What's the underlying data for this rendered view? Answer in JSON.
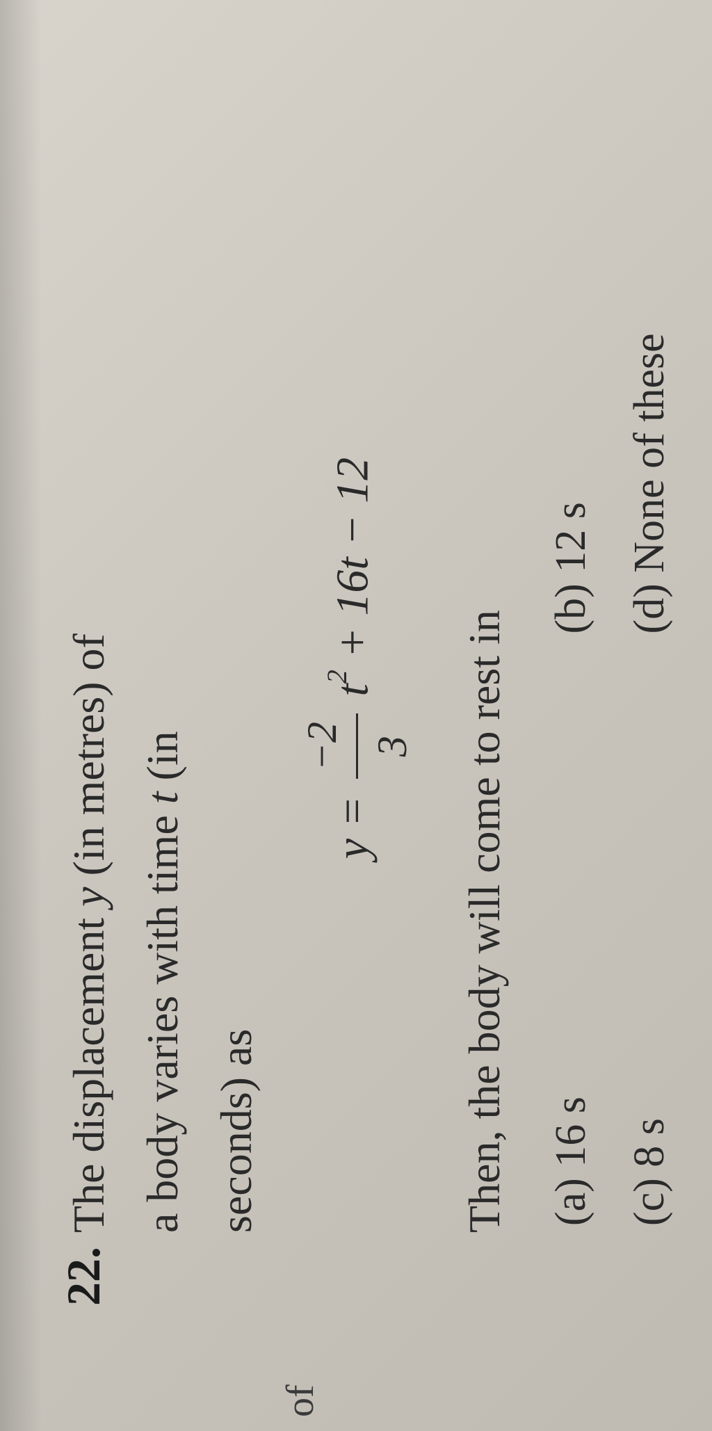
{
  "question": {
    "number": "22.",
    "line1_part1": "The displacement ",
    "line1_var": "y",
    "line1_part2": " (in metres) of",
    "line2_part1": "a body varies with time ",
    "line2_var": "t",
    "line2_part2": " (in",
    "line3": "seconds) as",
    "equation": {
      "lhs": "y",
      "equals": " = ",
      "frac_num": "−2",
      "frac_den": "3",
      "term1_var": " t",
      "term1_exp": "2",
      "term2": " + 16",
      "term2_var": "t",
      "term3": " − 12"
    },
    "prompt": "Then, the body will come to rest in",
    "options": {
      "a": "(a) 16 s",
      "b": "(b) 12 s",
      "c": "(c) 8 s",
      "d": "(d) None of these"
    }
  },
  "margin_text": "of",
  "styling": {
    "background_color": "#d0ccc4",
    "text_color": "#2a2a2a",
    "font_family": "Georgia, Times New Roman, serif",
    "question_number_fontsize": 68,
    "body_fontsize": 64,
    "equation_fontsize": 66,
    "option_fontsize": 62,
    "rotation_deg": -90
  }
}
